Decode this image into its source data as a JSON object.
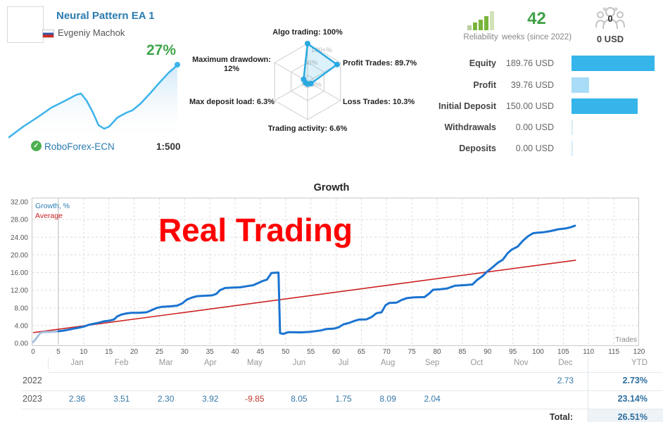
{
  "header": {
    "title": "Neural Pattern EA 1",
    "author": "Evgeniy Machok",
    "author_flag": "russia-flag",
    "growth_pct": "27%",
    "broker": "RoboForex-ECN",
    "leverage": "1:500"
  },
  "widgets": {
    "reliability_label": "Reliability",
    "weeks_value": "42",
    "weeks_label": "weeks (since 2022)",
    "subscribers_count": "0",
    "subscribers_funds": "0 USD",
    "reliability_bar_heights": [
      7,
      11,
      15,
      20,
      27
    ],
    "reliability_bar_colors": [
      "#bcd0a2",
      "#79b43c",
      "#79b43c",
      "#79b43c",
      "#d2e3b8"
    ]
  },
  "radar": {
    "rings": [
      "100+%",
      "50%",
      "0%"
    ],
    "line_color": "#2aa9e0",
    "axes": [
      {
        "label": "Algo trading: 100%",
        "value": 1.0
      },
      {
        "label": "Profit Trades: 89.7%",
        "value": 0.897
      },
      {
        "label": "Loss Trades: 10.3%",
        "value": 0.103
      },
      {
        "label": "Trading activity: 6.6%",
        "value": 0.066
      },
      {
        "label": "Max deposit load: 6.3%",
        "value": 0.063
      },
      {
        "label": "Maximum drawdown:\n12%",
        "value": 0.12
      }
    ]
  },
  "stats": {
    "rows": [
      {
        "label": "Equity",
        "value": "189.76 USD",
        "bar": 118,
        "color": "#35b5ea"
      },
      {
        "label": "Profit",
        "value": "39.76 USD",
        "bar": 25,
        "color": "#a9dcf6"
      },
      {
        "label": "Initial Deposit",
        "value": "150.00 USD",
        "bar": 94,
        "color": "#35b5ea"
      },
      {
        "label": "Withdrawals",
        "value": "0.00 USD",
        "bar": 2,
        "color": "#d8edf8"
      },
      {
        "label": "Deposits",
        "value": "0.00 USD",
        "bar": 2,
        "color": "#d8edf8"
      }
    ]
  },
  "sparkline": {
    "color": "#3cb3ea",
    "points": [
      [
        5,
        135
      ],
      [
        25,
        120
      ],
      [
        45,
        107
      ],
      [
        65,
        93
      ],
      [
        85,
        83
      ],
      [
        100,
        75
      ],
      [
        107,
        73
      ],
      [
        115,
        83
      ],
      [
        124,
        100
      ],
      [
        132,
        118
      ],
      [
        140,
        123
      ],
      [
        147,
        120
      ],
      [
        159,
        107
      ],
      [
        172,
        100
      ],
      [
        180,
        97
      ],
      [
        192,
        87
      ],
      [
        205,
        73
      ],
      [
        219,
        57
      ],
      [
        232,
        43
      ],
      [
        239,
        37
      ],
      [
        244,
        32
      ]
    ]
  },
  "watermark": "Real Trading",
  "chart_data": {
    "type": "line",
    "title": "Growth",
    "xlabel": "Trades",
    "ylabel": "Growth, %",
    "xlim": [
      0,
      120
    ],
    "ylim": [
      0,
      32
    ],
    "x_tick_step": 5,
    "y_tick_step": 4,
    "grid": true,
    "legend": [
      "Growth, %",
      "Average"
    ],
    "legend_colors": [
      "#2b7cb0",
      "#cc2222"
    ],
    "series": [
      {
        "name": "Growth, %",
        "color": "#1b74d0",
        "faded_color": "#a9c2e2",
        "points": [
          [
            0,
            0.2
          ],
          [
            0.7,
            1.2
          ],
          [
            1.4,
            2.3
          ],
          [
            2,
            2.5
          ],
          [
            3,
            2.55
          ],
          [
            4,
            2.6
          ],
          [
            5,
            2.7
          ],
          [
            6,
            2.85
          ],
          [
            7,
            3.05
          ],
          [
            8,
            3.3
          ],
          [
            9,
            3.5
          ],
          [
            10,
            3.75
          ],
          [
            11,
            4.15
          ],
          [
            12,
            4.4
          ],
          [
            13,
            4.65
          ],
          [
            14,
            4.95
          ],
          [
            15,
            5.1
          ],
          [
            16,
            5.35
          ],
          [
            16.7,
            6.1
          ],
          [
            17.5,
            6.5
          ],
          [
            18.5,
            6.75
          ],
          [
            19.5,
            6.9
          ],
          [
            21,
            6.9
          ],
          [
            22.5,
            7.0
          ],
          [
            23.5,
            7.5
          ],
          [
            24.5,
            8.0
          ],
          [
            25.5,
            8.25
          ],
          [
            27,
            8.35
          ],
          [
            28.5,
            8.5
          ],
          [
            29.5,
            9.0
          ],
          [
            30.5,
            9.9
          ],
          [
            31.5,
            10.35
          ],
          [
            32.5,
            10.65
          ],
          [
            34,
            10.75
          ],
          [
            35.5,
            10.85
          ],
          [
            36.3,
            11.2
          ],
          [
            37,
            12.0
          ],
          [
            38,
            12.5
          ],
          [
            39.5,
            12.6
          ],
          [
            41,
            12.65
          ],
          [
            42.5,
            12.95
          ],
          [
            43.5,
            13.1
          ],
          [
            44.5,
            13.6
          ],
          [
            45.5,
            14.1
          ],
          [
            46.3,
            14.4
          ],
          [
            46.8,
            15.2
          ],
          [
            47.2,
            15.9
          ],
          [
            48.6,
            16.0
          ],
          [
            48.9,
            2.3
          ],
          [
            49.5,
            2.1
          ],
          [
            50.5,
            2.5
          ],
          [
            53,
            2.45
          ],
          [
            55,
            2.6
          ],
          [
            57,
            2.9
          ],
          [
            58,
            3.2
          ],
          [
            59.5,
            3.3
          ],
          [
            60.5,
            3.6
          ],
          [
            61.5,
            4.3
          ],
          [
            62.5,
            4.55
          ],
          [
            63.5,
            5.0
          ],
          [
            64.5,
            5.35
          ],
          [
            66,
            5.4
          ],
          [
            67,
            5.9
          ],
          [
            68,
            6.8
          ],
          [
            69,
            7.0
          ],
          [
            69.8,
            8.6
          ],
          [
            70.5,
            9.1
          ],
          [
            72,
            9.2
          ],
          [
            73,
            9.8
          ],
          [
            74,
            10.2
          ],
          [
            75.5,
            10.4
          ],
          [
            77.5,
            10.45
          ],
          [
            78.5,
            11.3
          ],
          [
            79.2,
            12.1
          ],
          [
            80.5,
            12.2
          ],
          [
            82,
            12.4
          ],
          [
            83.5,
            13.0
          ],
          [
            85.5,
            13.15
          ],
          [
            87,
            13.3
          ],
          [
            88,
            14.4
          ],
          [
            89,
            15.2
          ],
          [
            90,
            16.3
          ],
          [
            91,
            17.2
          ],
          [
            92,
            18.2
          ],
          [
            93,
            18.9
          ],
          [
            94,
            20.4
          ],
          [
            94.8,
            21.2
          ],
          [
            96,
            21.9
          ],
          [
            97,
            23.2
          ],
          [
            98,
            24.2
          ],
          [
            99,
            24.9
          ],
          [
            100,
            25.05
          ],
          [
            101,
            25.1
          ],
          [
            102.5,
            25.4
          ],
          [
            104,
            25.8
          ],
          [
            105.5,
            26.0
          ],
          [
            106.3,
            26.2
          ],
          [
            107.3,
            26.6
          ]
        ]
      },
      {
        "name": "Average",
        "color": "#cc2222",
        "points": [
          [
            0,
            2.4
          ],
          [
            107.5,
            18.8
          ]
        ]
      }
    ]
  },
  "table": {
    "months": [
      "Jan",
      "Feb",
      "Mar",
      "Apr",
      "May",
      "Jun",
      "Jul",
      "Aug",
      "Sep",
      "Oct",
      "Nov",
      "Dec"
    ],
    "ytd_label": "YTD",
    "rows": [
      {
        "year": "2022",
        "values": [
          null,
          null,
          null,
          null,
          null,
          null,
          null,
          null,
          null,
          null,
          null,
          "2.73"
        ],
        "ytd": "2.73%"
      },
      {
        "year": "2023",
        "values": [
          "2.36",
          "3.51",
          "2.30",
          "3.92",
          "-9.85",
          "8.05",
          "1.75",
          "8.09",
          "2.04",
          null,
          null,
          null
        ],
        "ytd": "23.14%"
      }
    ],
    "total_label": "Total:",
    "total": "26.51%",
    "positive_color": "#3478a8",
    "negative_color": "#c0392b"
  }
}
